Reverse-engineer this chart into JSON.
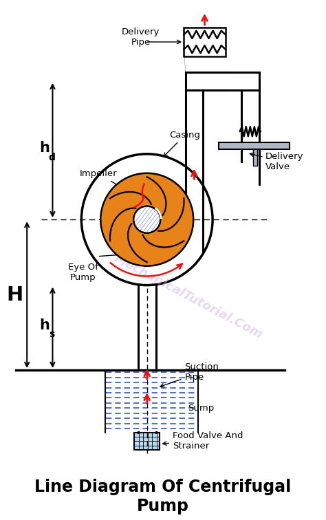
{
  "title": "Line Diagram Of Centrifugal\nPump",
  "title_fontsize": 17,
  "bg_color": "#ffffff",
  "fig_width": 4.74,
  "fig_height": 7.56,
  "labels": {
    "delivery_pipe": "Delivery\nPipe",
    "casing": "Casing",
    "impeller": "Impeller",
    "eye_of_pump": "Eye Of\nPump",
    "suction_pipe": "Suction\nPipe",
    "sump": "Sump",
    "food_valve": "Food Valve And\nStrainer",
    "delivery_valve": "Delivery\nValve",
    "H": "H",
    "hd": "h",
    "hd_sub": "d",
    "hs": "h",
    "hs_sub": "s",
    "watermark": "MechanicalTutorial.Com"
  },
  "orange": "#E8831A",
  "red": "#EE1111",
  "blue_light": "#B8D8F0",
  "dark_blue": "#3355BB",
  "black": "#000000",
  "gray": "#888888",
  "light_gray": "#C8C8D8",
  "valve_gray": "#B0B8C8"
}
